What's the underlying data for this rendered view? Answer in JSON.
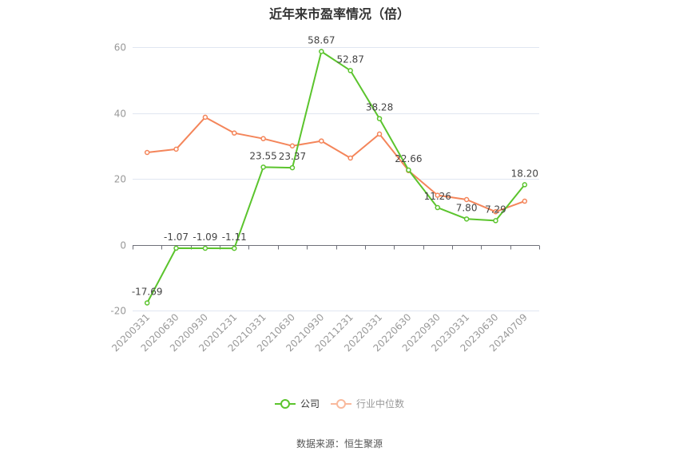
{
  "title": "近年来市盈率情况（倍）",
  "source": "数据来源：恒生聚源",
  "colors": {
    "company": "#5bc42d",
    "industry": "#f4855a",
    "grid": "#e0e6f1",
    "axis": "#6e7079",
    "tick_label": "#999999"
  },
  "legend": [
    {
      "label": "公司",
      "color": "#5bc42d"
    },
    {
      "label": "行业中位数",
      "color": "#f4855a"
    }
  ],
  "chart_data": {
    "type": "line",
    "title": "近年来市盈率情况（倍）",
    "xlabel": "",
    "ylabel": "",
    "ylim": [
      -20,
      60
    ],
    "yticks": [
      -20,
      0,
      20,
      40,
      60
    ],
    "grid": true,
    "legend_position": "bottom",
    "categories": [
      "20200331",
      "20200630",
      "20200930",
      "20201231",
      "20210331",
      "20210630",
      "20210930",
      "20211231",
      "20220331",
      "20220630",
      "20220930",
      "20230331",
      "20230630",
      "20240709"
    ],
    "series": [
      {
        "name": "公司",
        "values": [
          -17.69,
          -1.07,
          -1.09,
          -1.11,
          23.55,
          23.37,
          58.67,
          52.87,
          38.28,
          22.66,
          11.26,
          7.8,
          7.29,
          18.2
        ],
        "labels": [
          "-17.69",
          "-1.07",
          "-1.09",
          "-1.11",
          "23.55",
          "23.37",
          "58.67",
          "52.87",
          "38.28",
          "22.66",
          "11.26",
          "7.80",
          "7.29",
          "18.20"
        ]
      },
      {
        "name": "行业中位数",
        "values": [
          28.0,
          29.0,
          38.7,
          33.9,
          32.2,
          30.0,
          31.5,
          26.3,
          33.6,
          22.5,
          15.0,
          13.7,
          10.0,
          13.2
        ]
      }
    ]
  }
}
